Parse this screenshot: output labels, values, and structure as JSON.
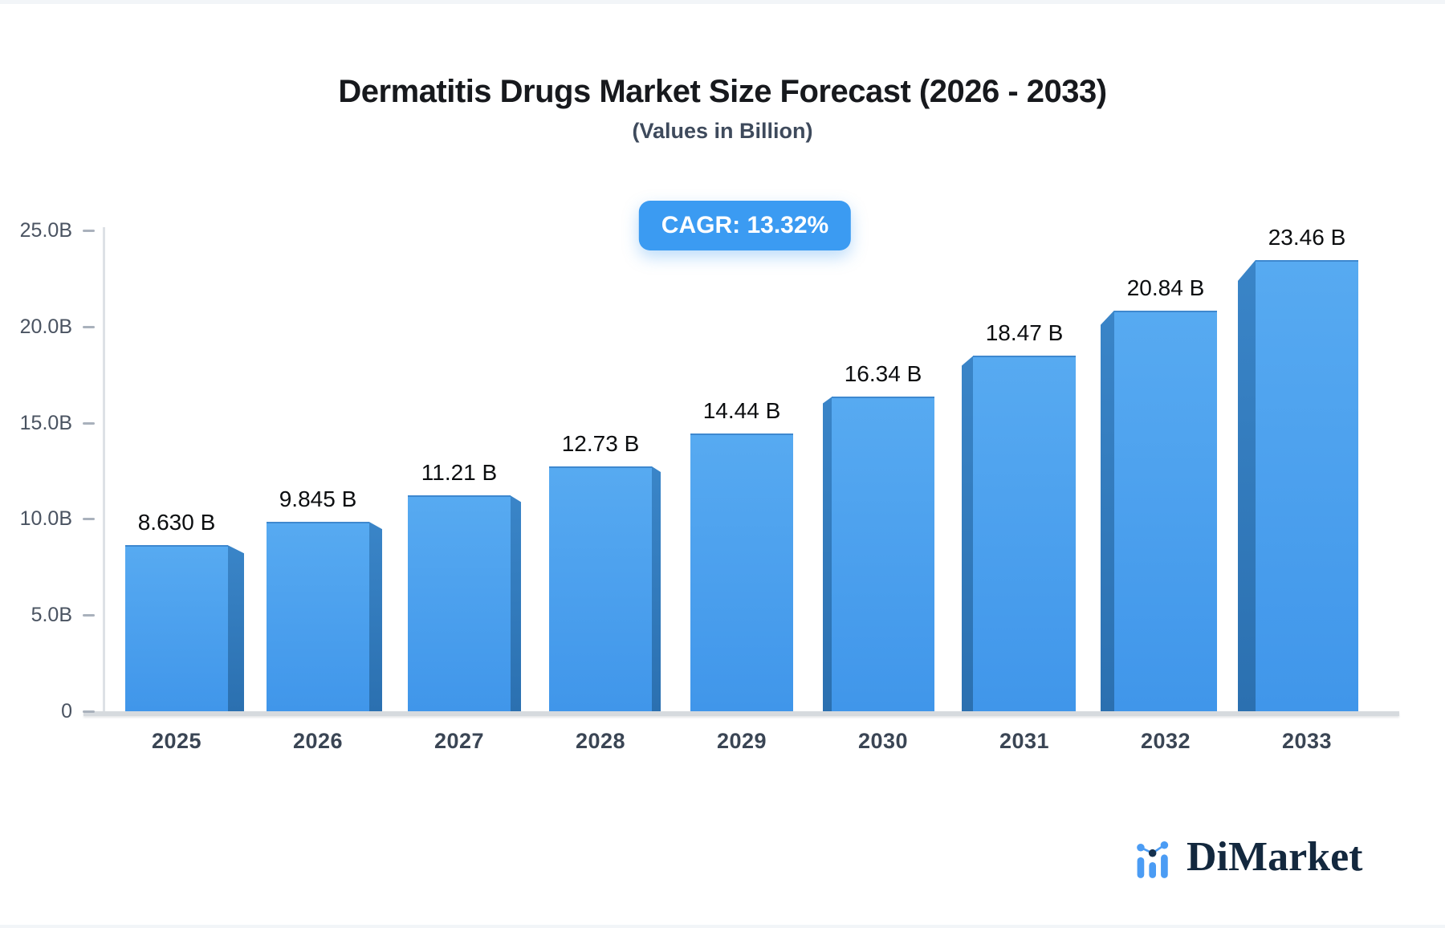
{
  "chart_data": {
    "type": "bar",
    "title": "Dermatitis Drugs Market Size Forecast (2026 - 2033)",
    "subtitle": "(Values in Billion)",
    "badge": "CAGR: 13.32%",
    "categories": [
      "2025",
      "2026",
      "2027",
      "2028",
      "2029",
      "2030",
      "2031",
      "2032",
      "2033"
    ],
    "values": [
      8.63,
      9.845,
      11.21,
      12.73,
      14.44,
      16.34,
      18.47,
      20.84,
      23.46
    ],
    "bar_labels": [
      "8.630 B",
      "9.845 B",
      "11.21 B",
      "12.73 B",
      "14.44 B",
      "16.34 B",
      "18.47 B",
      "20.84 B",
      "23.46 B"
    ],
    "unit": "B",
    "ylim": [
      0,
      25
    ],
    "y_ticks": [
      {
        "value": 25,
        "label": "25.0B"
      },
      {
        "value": 20,
        "label": "20.0B"
      },
      {
        "value": 15,
        "label": "15.0B"
      },
      {
        "value": 10,
        "label": "10.0B"
      },
      {
        "value": 5,
        "label": "5.0B"
      },
      {
        "value": 0,
        "label": "0"
      }
    ],
    "grid": false,
    "legend": false,
    "style": "3d-beveled-bars-center-vanishing",
    "colors": {
      "bar_top": "#57aaf1",
      "bar_bottom": "#4096ea",
      "bar_top_edge": "#3e88cf",
      "bar_side": "#2e78b9",
      "badge_background": "#3b9bf2",
      "badge_text": "#ffffff",
      "axis_line": "#dde1e6",
      "tick_text": "#4a5361",
      "x_label_text": "#3a4554",
      "value_label_text": "#0c0e10",
      "title_text": "#17191d"
    }
  },
  "branding": {
    "logo_text": "DiMarket",
    "logo_icon": "bar-line-chart-icon",
    "logo_text_color": "#13283e",
    "logo_icon_color": "#4b9cf4",
    "logo_icon_dot_color": "#16324f"
  }
}
